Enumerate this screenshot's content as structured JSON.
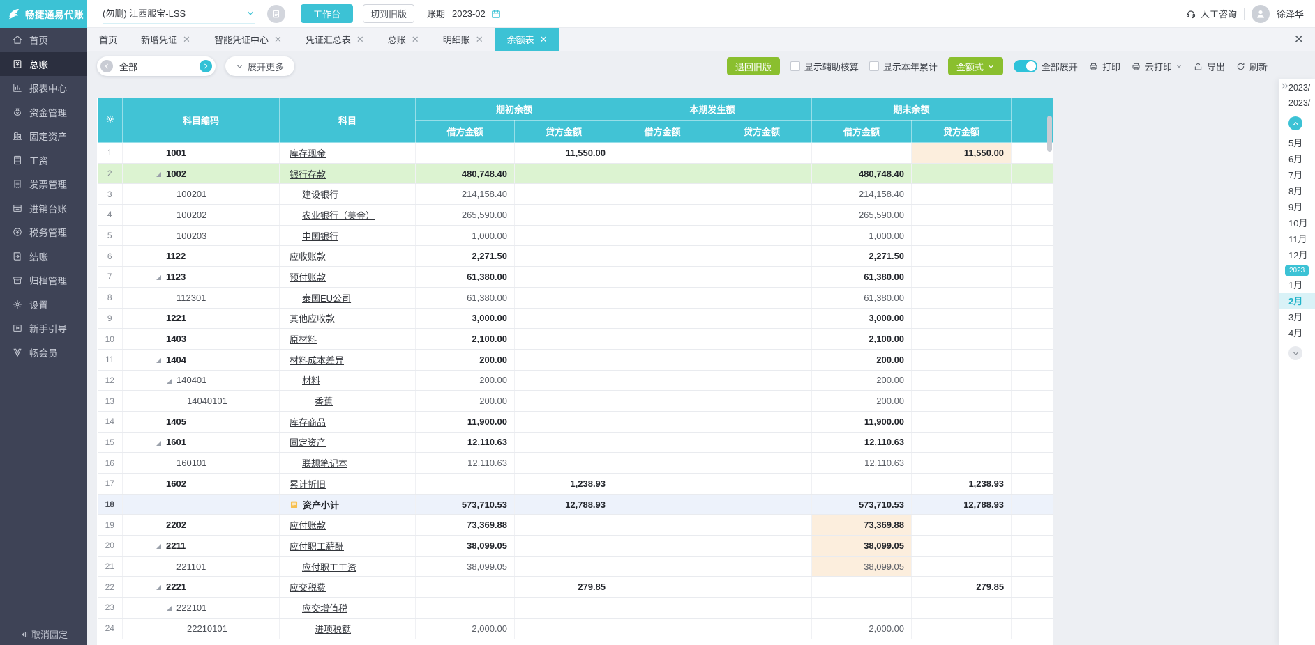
{
  "topbar": {
    "logo_text": "畅捷通易代账",
    "company": "(勿删) 江西服宝-LSS",
    "workbench": "工作台",
    "switch_old": "切到旧版",
    "period_label": "账期",
    "period_value": "2023-02",
    "support": "人工咨询",
    "username": "徐泽华"
  },
  "sidebar": {
    "items": [
      {
        "key": "home",
        "label": "首页",
        "active": false
      },
      {
        "key": "general-ledger",
        "label": "总账",
        "active": true
      },
      {
        "key": "report-center",
        "label": "报表中心",
        "active": false
      },
      {
        "key": "fund-management",
        "label": "资金管理",
        "active": false
      },
      {
        "key": "fixed-assets",
        "label": "固定资产",
        "active": false
      },
      {
        "key": "salary",
        "label": "工资",
        "active": false
      },
      {
        "key": "invoice-management",
        "label": "发票管理",
        "active": false
      },
      {
        "key": "purchase-sale-ledger",
        "label": "进销台账",
        "active": false
      },
      {
        "key": "tax-management",
        "label": "税务管理",
        "active": false
      },
      {
        "key": "closing",
        "label": "结账",
        "active": false
      },
      {
        "key": "archive-management",
        "label": "归档管理",
        "active": false
      },
      {
        "key": "settings",
        "label": "设置",
        "active": false
      },
      {
        "key": "beginner-guide",
        "label": "新手引导",
        "active": false
      },
      {
        "key": "vip-member",
        "label": "畅会员",
        "active": false
      }
    ],
    "unpin": "取消固定"
  },
  "tabs": [
    {
      "key": "home",
      "label": "首页",
      "closable": false,
      "active": false
    },
    {
      "key": "new-voucher",
      "label": "新增凭证",
      "closable": true,
      "active": false
    },
    {
      "key": "smart-voucher-center",
      "label": "智能凭证中心",
      "closable": true,
      "active": false
    },
    {
      "key": "voucher-summary",
      "label": "凭证汇总表",
      "closable": true,
      "active": false
    },
    {
      "key": "general-ledger",
      "label": "总账",
      "closable": true,
      "active": false
    },
    {
      "key": "detail-ledger",
      "label": "明细账",
      "closable": true,
      "active": false
    },
    {
      "key": "balance-sheet",
      "label": "余额表",
      "closable": true,
      "active": true
    }
  ],
  "toolbar": {
    "range": "全部",
    "expand_more": "展开更多",
    "back_to_old": "退回旧版",
    "show_aux": "显示辅助核算",
    "show_ytd": "显示本年累计",
    "amount_style": "金额式",
    "expand_all": "全部展开",
    "print": "打印",
    "cloud_print": "云打印",
    "export": "导出",
    "refresh": "刷新"
  },
  "table": {
    "headers": {
      "code": "科目编码",
      "subject": "科目",
      "opening": "期初余额",
      "current": "本期发生额",
      "closing": "期末余额",
      "debit": "借方金额",
      "credit": "贷方金额"
    },
    "rows": [
      {
        "n": 1,
        "code": "1001",
        "name": "库存现金",
        "lvl": 1,
        "exp": false,
        "bold": true,
        "v": [
          "",
          "11,550.00",
          "",
          "",
          "",
          "11,550.00"
        ],
        "hl": [
          0,
          0,
          0,
          0,
          0,
          1
        ]
      },
      {
        "n": 2,
        "code": "1002",
        "name": "银行存款",
        "lvl": 1,
        "exp": true,
        "bold": true,
        "v": [
          "480,748.40",
          "",
          "",
          "",
          "480,748.40",
          ""
        ],
        "bg": "green"
      },
      {
        "n": 3,
        "code": "100201",
        "name": "建设银行",
        "lvl": 2,
        "exp": false,
        "bold": false,
        "v": [
          "214,158.40",
          "",
          "",
          "",
          "214,158.40",
          ""
        ]
      },
      {
        "n": 4,
        "code": "100202",
        "name": "农业银行（美金）",
        "lvl": 2,
        "exp": false,
        "bold": false,
        "v": [
          "265,590.00",
          "",
          "",
          "",
          "265,590.00",
          ""
        ]
      },
      {
        "n": 5,
        "code": "100203",
        "name": "中国银行",
        "lvl": 2,
        "exp": false,
        "bold": false,
        "v": [
          "1,000.00",
          "",
          "",
          "",
          "1,000.00",
          ""
        ]
      },
      {
        "n": 6,
        "code": "1122",
        "name": "应收账款",
        "lvl": 1,
        "exp": false,
        "bold": true,
        "v": [
          "2,271.50",
          "",
          "",
          "",
          "2,271.50",
          ""
        ]
      },
      {
        "n": 7,
        "code": "1123",
        "name": "预付账款",
        "lvl": 1,
        "exp": true,
        "bold": true,
        "v": [
          "61,380.00",
          "",
          "",
          "",
          "61,380.00",
          ""
        ]
      },
      {
        "n": 8,
        "code": "112301",
        "name": "泰国EU公司",
        "lvl": 2,
        "exp": false,
        "bold": false,
        "v": [
          "61,380.00",
          "",
          "",
          "",
          "61,380.00",
          ""
        ]
      },
      {
        "n": 9,
        "code": "1221",
        "name": "其他应收款",
        "lvl": 1,
        "exp": false,
        "bold": true,
        "v": [
          "3,000.00",
          "",
          "",
          "",
          "3,000.00",
          ""
        ]
      },
      {
        "n": 10,
        "code": "1403",
        "name": "原材料",
        "lvl": 1,
        "exp": false,
        "bold": true,
        "v": [
          "2,100.00",
          "",
          "",
          "",
          "2,100.00",
          ""
        ]
      },
      {
        "n": 11,
        "code": "1404",
        "name": "材料成本差异",
        "lvl": 1,
        "exp": true,
        "bold": true,
        "v": [
          "200.00",
          "",
          "",
          "",
          "200.00",
          ""
        ]
      },
      {
        "n": 12,
        "code": "140401",
        "name": "材料",
        "lvl": 2,
        "exp": true,
        "bold": false,
        "v": [
          "200.00",
          "",
          "",
          "",
          "200.00",
          ""
        ]
      },
      {
        "n": 13,
        "code": "14040101",
        "name": "香蕉",
        "lvl": 3,
        "exp": false,
        "bold": false,
        "v": [
          "200.00",
          "",
          "",
          "",
          "200.00",
          ""
        ]
      },
      {
        "n": 14,
        "code": "1405",
        "name": "库存商品",
        "lvl": 1,
        "exp": false,
        "bold": true,
        "v": [
          "11,900.00",
          "",
          "",
          "",
          "11,900.00",
          ""
        ]
      },
      {
        "n": 15,
        "code": "1601",
        "name": "固定资产",
        "lvl": 1,
        "exp": true,
        "bold": true,
        "v": [
          "12,110.63",
          "",
          "",
          "",
          "12,110.63",
          ""
        ]
      },
      {
        "n": 16,
        "code": "160101",
        "name": "联想笔记本",
        "lvl": 2,
        "exp": false,
        "bold": false,
        "v": [
          "12,110.63",
          "",
          "",
          "",
          "12,110.63",
          ""
        ]
      },
      {
        "n": 17,
        "code": "1602",
        "name": "累计折旧",
        "lvl": 1,
        "exp": false,
        "bold": true,
        "v": [
          "",
          "1,238.93",
          "",
          "",
          "",
          "1,238.93"
        ]
      },
      {
        "n": 18,
        "code": "",
        "name": "资产小计",
        "lvl": 1,
        "exp": false,
        "bold": true,
        "sub": true,
        "v": [
          "573,710.53",
          "12,788.93",
          "",
          "",
          "573,710.53",
          "12,788.93"
        ]
      },
      {
        "n": 19,
        "code": "2202",
        "name": "应付账款",
        "lvl": 1,
        "exp": false,
        "bold": true,
        "v": [
          "73,369.88",
          "",
          "",
          "",
          "73,369.88",
          ""
        ],
        "hl": [
          0,
          0,
          0,
          0,
          1,
          0
        ]
      },
      {
        "n": 20,
        "code": "2211",
        "name": "应付职工薪酬",
        "lvl": 1,
        "exp": true,
        "bold": true,
        "v": [
          "38,099.05",
          "",
          "",
          "",
          "38,099.05",
          ""
        ],
        "hl": [
          0,
          0,
          0,
          0,
          1,
          0
        ]
      },
      {
        "n": 21,
        "code": "221101",
        "name": "应付职工工资",
        "lvl": 2,
        "exp": false,
        "bold": false,
        "v": [
          "38,099.05",
          "",
          "",
          "",
          "38,099.05",
          ""
        ],
        "hl": [
          0,
          0,
          0,
          0,
          1,
          0
        ]
      },
      {
        "n": 22,
        "code": "2221",
        "name": "应交税费",
        "lvl": 1,
        "exp": true,
        "bold": true,
        "v": [
          "",
          "279.85",
          "",
          "",
          "",
          "279.85"
        ]
      },
      {
        "n": 23,
        "code": "222101",
        "name": "应交增值税",
        "lvl": 2,
        "exp": true,
        "bold": false,
        "v": [
          "",
          "",
          "",
          "",
          "",
          ""
        ]
      },
      {
        "n": 24,
        "code": "22210101",
        "name": "进项税额",
        "lvl": 3,
        "exp": false,
        "bold": false,
        "v": [
          "2,000.00",
          "",
          "",
          "",
          "2,000.00",
          ""
        ]
      }
    ]
  },
  "month_panel": {
    "dates": [
      "2023/",
      "2023/"
    ],
    "year_badge": "2023",
    "months_prev": [
      "5月",
      "6月",
      "7月",
      "8月",
      "9月",
      "10月",
      "11月",
      "12月"
    ],
    "months_cur": [
      "1月",
      "2月",
      "3月",
      "4月"
    ],
    "active_month": "2月"
  }
}
